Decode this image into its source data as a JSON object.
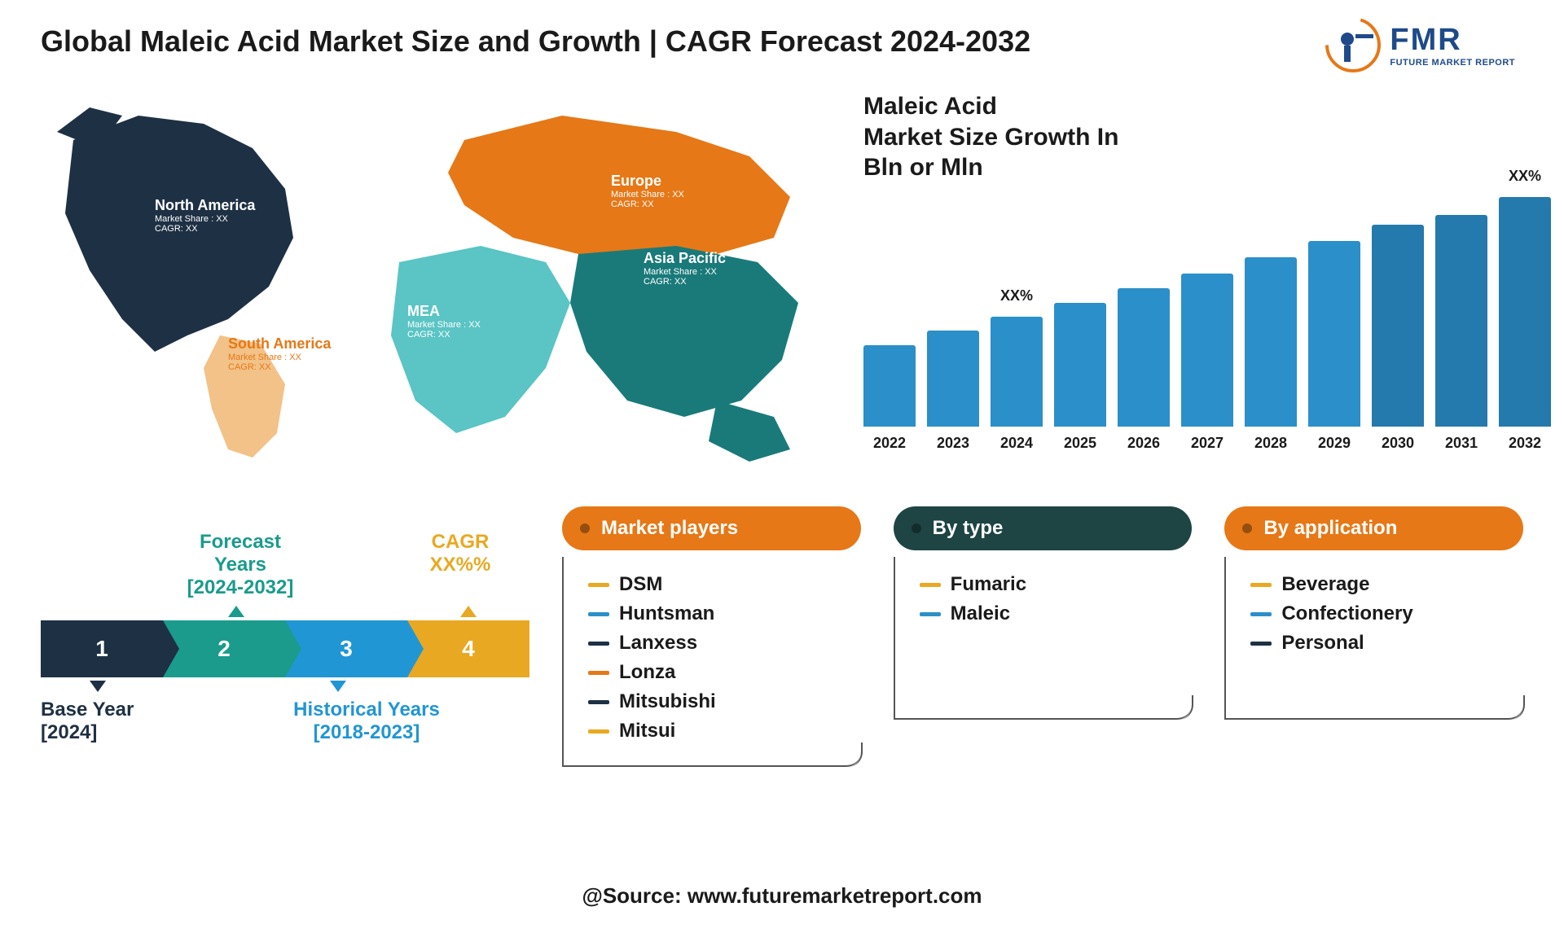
{
  "title": "Global Maleic Acid Market Size and Growth | CAGR Forecast 2024-2032",
  "logo": {
    "fmr": "FMR",
    "sub": "FUTURE MARKET REPORT"
  },
  "colors": {
    "north_america": "#1e3044",
    "south_america": "#f2c288",
    "europe": "#e67817",
    "mea": "#5bc4c4",
    "asia_pacific": "#1a7a7a",
    "bar": "#2b8fc9",
    "title_text": "#1a1a1a"
  },
  "regions": {
    "na": {
      "name": "North America",
      "share": "Market Share : XX",
      "cagr": "CAGR: XX"
    },
    "sa": {
      "name": "South America",
      "share": "Market Share : XX",
      "cagr": "CAGR: XX"
    },
    "eu": {
      "name": "Europe",
      "share": "Market Share : XX",
      "cagr": "CAGR: XX"
    },
    "mea": {
      "name": "MEA",
      "share": "Market Share : XX",
      "cagr": "CAGR: XX"
    },
    "ap": {
      "name": "Asia Pacific",
      "share": "Market Share : XX",
      "cagr": "CAGR: XX"
    }
  },
  "chart": {
    "title": "Maleic Acid\nMarket Size Growth In\nBln or Mln",
    "type": "bar",
    "years": [
      "2022",
      "2023",
      "2024",
      "2025",
      "2026",
      "2027",
      "2028",
      "2029",
      "2030",
      "2031",
      "2032"
    ],
    "heights": [
      100,
      118,
      135,
      152,
      170,
      188,
      208,
      228,
      248,
      260,
      282
    ],
    "bar_color": "#2b8fc9",
    "bar_color_alt": "#247aac",
    "labels_top": {
      "2024": "XX%",
      "2032": "XX%"
    }
  },
  "timeline": {
    "forecast_label": "Forecast Years",
    "forecast_range": "[2024-2032]",
    "cagr_label": "CAGR",
    "cagr_value": "XX%%",
    "base_label": "Base Year",
    "base_range": "[2024]",
    "hist_label": "Historical Years",
    "hist_range": "[2018-2023]",
    "segments": [
      "1",
      "2",
      "3",
      "4"
    ],
    "seg_colors": [
      "#1e3044",
      "#1a9b8c",
      "#2196d4",
      "#e9a821"
    ]
  },
  "market_players": {
    "header": "Market players",
    "header_color": "#e67817",
    "items": [
      {
        "label": "DSM",
        "color": "#e9a821"
      },
      {
        "label": "Huntsman",
        "color": "#2b8fc9"
      },
      {
        "label": "Lanxess",
        "color": "#1e3044"
      },
      {
        "label": "Lonza",
        "color": "#e67817"
      },
      {
        "label": "Mitsubishi",
        "color": "#1e3044"
      },
      {
        "label": "Mitsui",
        "color": "#e9a821"
      }
    ]
  },
  "by_type": {
    "header": "By type",
    "header_color": "#1e4444",
    "items": [
      {
        "label": "Fumaric",
        "color": "#e9a821"
      },
      {
        "label": "Maleic",
        "color": "#2b8fc9"
      }
    ]
  },
  "by_application": {
    "header": "By application",
    "header_color": "#e67817",
    "items": [
      {
        "label": "Beverage",
        "color": "#e9a821"
      },
      {
        "label": "Confectionery",
        "color": "#2b8fc9"
      },
      {
        "label": "Personal",
        "color": "#1e3044"
      }
    ]
  },
  "source": "@Source: www.futuremarketreport.com"
}
